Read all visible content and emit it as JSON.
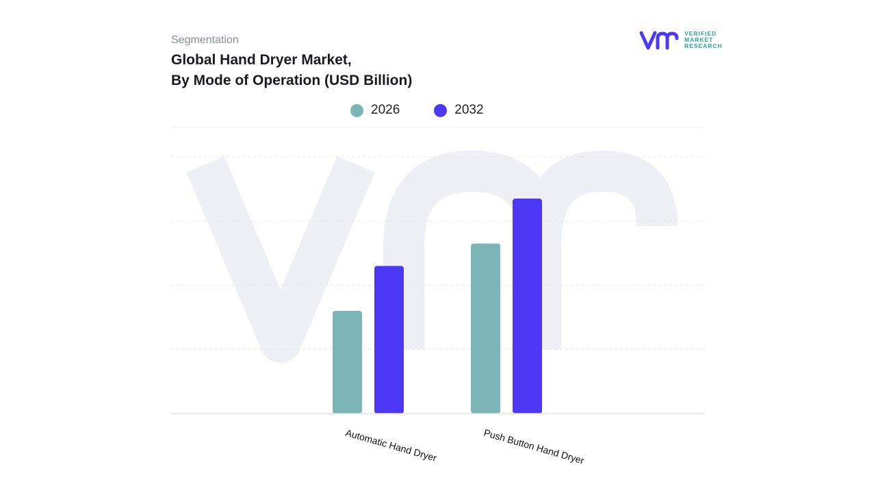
{
  "header": {
    "subtitle": "Segmentation",
    "title_line1": "Global Hand Dryer Market,",
    "title_line2": "By Mode of Operation (USD Billion)"
  },
  "logo": {
    "mark": "vmr",
    "line1": "VERIFIED",
    "line2": "MARKET",
    "line3": "RESEARCH",
    "brand_color": "#4c38f5",
    "text_color": "#2aa79b"
  },
  "watermark": "vmr",
  "chart_data": {
    "type": "bar",
    "title": "Global Hand Dryer Market, By Mode of Operation (USD Billion)",
    "categories": [
      "Automatic Hand Dryer",
      "Push Button Hand Dryer"
    ],
    "series": [
      {
        "name": "2026",
        "color": "#7bb5b8",
        "values": [
          1.6,
          2.65
        ]
      },
      {
        "name": "2032",
        "color": "#4c38f5",
        "values": [
          2.3,
          3.35
        ]
      }
    ],
    "ylim": [
      0,
      4
    ],
    "grid": true,
    "legend_position": "top",
    "xlabel": "",
    "ylabel": ""
  }
}
